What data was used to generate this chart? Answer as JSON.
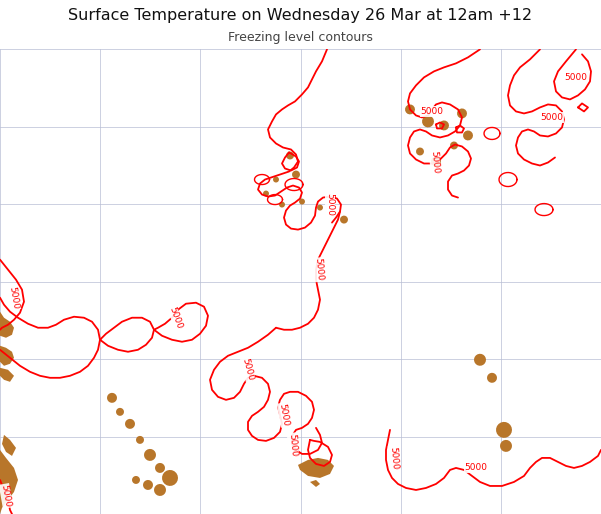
{
  "title": "Surface Temperature on Wednesday 26 Mar at 12am +12",
  "subtitle": "Freezing level contours",
  "title_fontsize": 11.5,
  "subtitle_fontsize": 9,
  "map_bg_color": "#dde3f0",
  "header_bg": "#ffffff",
  "contour_color": "#ff0000",
  "land_color": "#b8762a",
  "grid_color": "#b8bdd4",
  "label_fontsize": 6.5,
  "label_bg": "#ffffff",
  "figsize": [
    6.01,
    5.14
  ],
  "dpi": 100,
  "border_color": "#999999",
  "contour_lw": 1.3
}
